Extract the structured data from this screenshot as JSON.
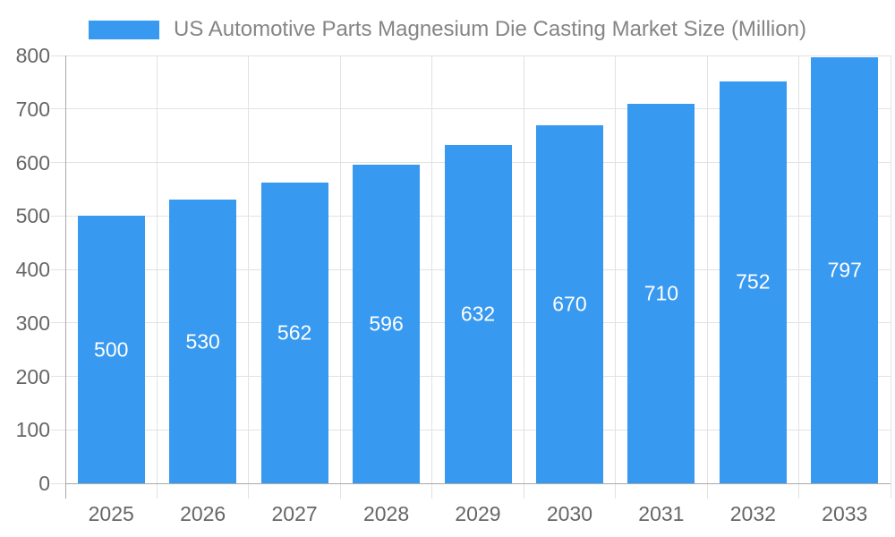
{
  "legend": {
    "label": "US Automotive Parts Magnesium Die Casting Market Size (Million)"
  },
  "chart_data": {
    "type": "bar",
    "title": "US Automotive Parts Magnesium Die Casting Market Size (Million)",
    "series_name": "US Automotive Parts Magnesium Die Casting Market Size (Million)",
    "categories": [
      "2025",
      "2026",
      "2027",
      "2028",
      "2029",
      "2030",
      "2031",
      "2032",
      "2033"
    ],
    "values": [
      500,
      530,
      562,
      596,
      632,
      670,
      710,
      752,
      797
    ],
    "xlabel": "",
    "ylabel": "",
    "ylim": [
      0,
      800
    ],
    "yticks": [
      0,
      100,
      200,
      300,
      400,
      500,
      600,
      700,
      800
    ],
    "grid": true,
    "legend_position": "top",
    "value_labels": "inside-center-white"
  },
  "colors": {
    "bar": "#3899F0",
    "gridline": "#E2E2E2",
    "axis_line": "#A8A8A8",
    "tick_label": "#666666",
    "title_text": "#858585",
    "value_label": "#FFFFFF",
    "background": "#FFFFFF"
  }
}
